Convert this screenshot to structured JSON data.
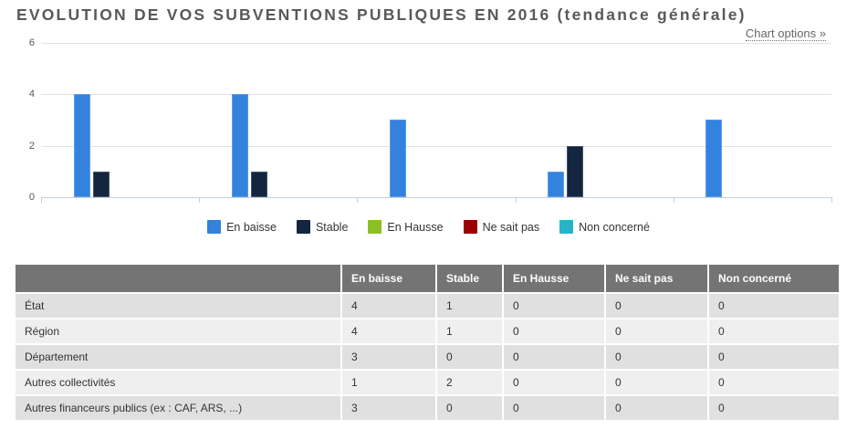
{
  "title": "EVOLUTION DE VOS SUBVENTIONS PUBLIQUES EN 2016 (tendance générale)",
  "chart_options_label": "Chart options »",
  "colors": {
    "en_baisse": "#3382de",
    "stable": "#13253f",
    "en_hausse": "#8bc024",
    "ne_sait_pas": "#990000",
    "non_concerne": "#29b3c8",
    "table_header_bg": "#747474",
    "row_dark": "#e0e0e0",
    "row_light": "#efefef",
    "axis_line": "#c0d0e0",
    "gridline": "#e2e2e2"
  },
  "chart_data": {
    "type": "bar",
    "categories": [
      "État",
      "Région",
      "Département",
      "Autres collectivités",
      "Autres financeurs publics (ex : CAF, ARS, ...)"
    ],
    "series": [
      {
        "name": "En baisse",
        "color": "#3382de",
        "values": [
          4,
          4,
          3,
          1,
          3
        ]
      },
      {
        "name": "Stable",
        "color": "#13253f",
        "values": [
          1,
          1,
          0,
          2,
          0
        ]
      },
      {
        "name": "En Hausse",
        "color": "#8bc024",
        "values": [
          0,
          0,
          0,
          0,
          0
        ]
      },
      {
        "name": "Ne sait pas",
        "color": "#990000",
        "values": [
          0,
          0,
          0,
          0,
          0
        ]
      },
      {
        "name": "Non concerné",
        "color": "#29b3c8",
        "values": [
          0,
          0,
          0,
          0,
          0
        ]
      }
    ],
    "title": "EVOLUTION DE VOS SUBVENTIONS PUBLIQUES EN 2016 (tendance générale)",
    "xlabel": "",
    "ylabel": "",
    "ylim": [
      0,
      6
    ],
    "yticks": [
      0,
      2,
      4,
      6
    ],
    "grid": true,
    "legend_position": "bottom",
    "x_category_labels_shown": false
  },
  "table": {
    "columns": [
      "",
      "En baisse",
      "Stable",
      "En Hausse",
      "Ne sait pas",
      "Non concerné"
    ],
    "rows": [
      {
        "label": "État",
        "values": [
          "4",
          "1",
          "0",
          "0",
          "0"
        ]
      },
      {
        "label": "Région",
        "values": [
          "4",
          "1",
          "0",
          "0",
          "0"
        ]
      },
      {
        "label": "Département",
        "values": [
          "3",
          "0",
          "0",
          "0",
          "0"
        ]
      },
      {
        "label": "Autres collectivités",
        "values": [
          "1",
          "2",
          "0",
          "0",
          "0"
        ]
      },
      {
        "label": "Autres financeurs publics (ex : CAF, ARS, ...)",
        "values": [
          "3",
          "0",
          "0",
          "0",
          "0"
        ]
      }
    ]
  }
}
